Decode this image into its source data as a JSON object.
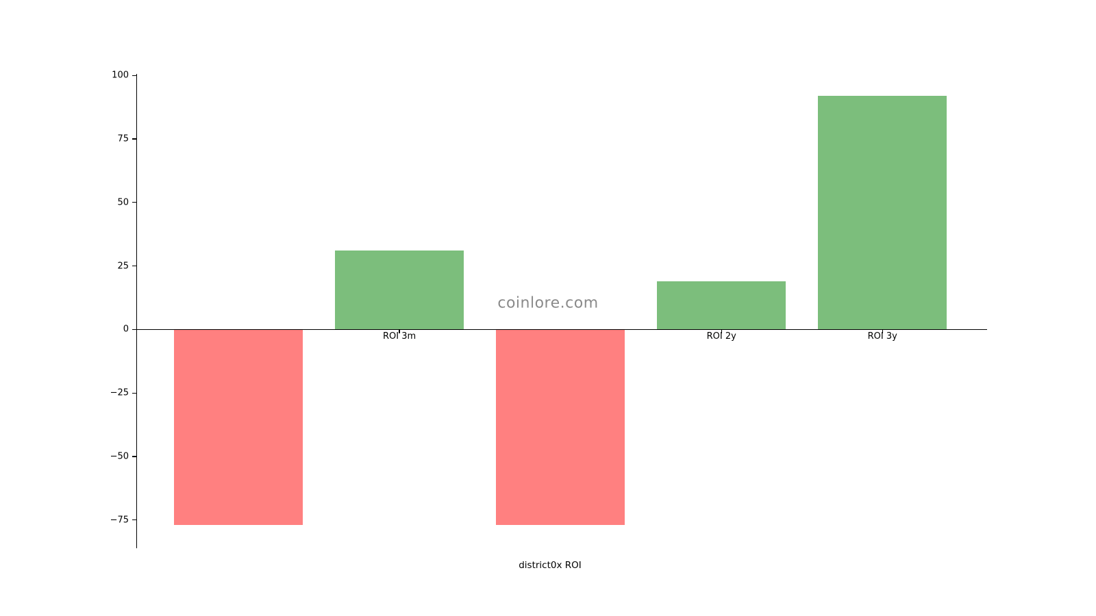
{
  "page": {
    "background": "#ffffff"
  },
  "watermark": {
    "text": "coinlore.com",
    "color": "#8a8a8a"
  },
  "chart_data": {
    "type": "bar",
    "title": "",
    "xlabel": "district0x ROI",
    "ylabel": "",
    "categories": [
      "",
      "ROI 3m",
      "",
      "ROI 2y",
      "ROI 3y"
    ],
    "values": [
      -77,
      31,
      -77,
      19,
      92
    ],
    "bar_colors": [
      "#ff8080",
      "#7cbe7c",
      "#ff8080",
      "#7cbe7c",
      "#7cbe7c"
    ],
    "positive_color": "#7cbe7c",
    "negative_color": "#ff8080",
    "y_ticks": [
      100,
      75,
      50,
      25,
      0,
      -25,
      -50,
      -75
    ],
    "ylim": [
      -86.1,
      100.6
    ],
    "xlim": [
      -0.63,
      4.65
    ],
    "bar_width": 0.8,
    "grid": false,
    "legend": false,
    "axis_color": "#000000"
  }
}
